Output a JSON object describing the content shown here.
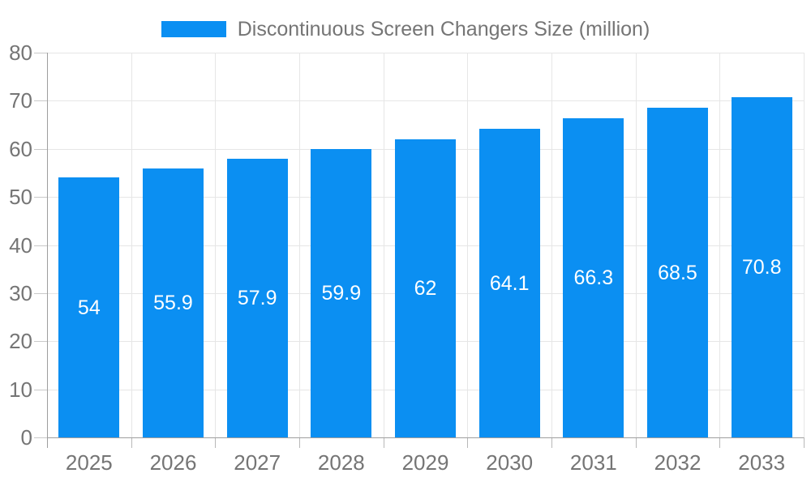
{
  "legend": {
    "label": "Discontinuous Screen Changers Size (million)"
  },
  "chart_data": {
    "type": "bar",
    "title": "Discontinuous Screen Changers Size (million)",
    "series_name": "Discontinuous Screen Changers Size (million)",
    "categories": [
      "2025",
      "2026",
      "2027",
      "2028",
      "2029",
      "2030",
      "2031",
      "2032",
      "2033"
    ],
    "values": [
      54,
      55.9,
      57.9,
      59.9,
      62,
      64.1,
      66.3,
      68.5,
      70.8
    ],
    "value_labels": [
      "54",
      "55.9",
      "57.9",
      "59.9",
      "62",
      "64.1",
      "66.3",
      "68.5",
      "70.8"
    ],
    "xlabel": "",
    "ylabel": "",
    "ylim": [
      0,
      80
    ],
    "yticks": [
      0,
      10,
      20,
      30,
      40,
      50,
      60,
      70,
      80
    ],
    "grid": true,
    "legend_position": "top",
    "colors": {
      "bar": "#0b8ff2",
      "bar_label_text": "#ffffff",
      "axis_text": "#757575",
      "gridline": "#e6e6e6",
      "axis_line": "#9e9e9e"
    }
  }
}
